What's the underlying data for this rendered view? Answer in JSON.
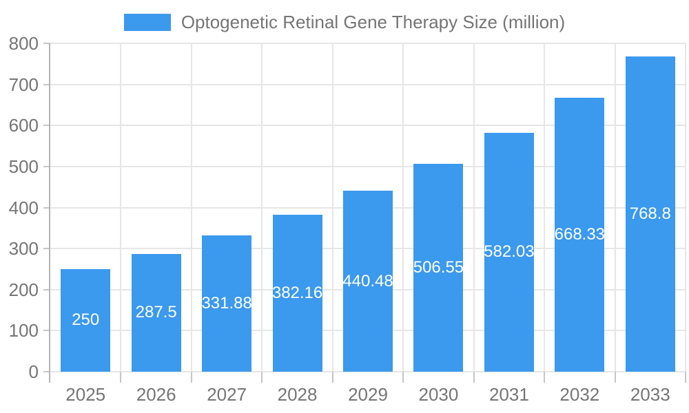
{
  "chart_data": {
    "type": "bar",
    "legend_label": "Optogenetic Retinal Gene Therapy Size (million)",
    "categories": [
      "2025",
      "2026",
      "2027",
      "2028",
      "2029",
      "2030",
      "2031",
      "2032",
      "2033"
    ],
    "values": [
      250,
      287.5,
      331.88,
      382.16,
      440.48,
      506.55,
      582.03,
      668.33,
      768.8
    ],
    "value_labels": [
      "250",
      "287.5",
      "331.88",
      "382.16",
      "440.48",
      "506.55",
      "582.03",
      "668.33",
      "768.8"
    ],
    "ylabel": "",
    "xlabel": "",
    "ylim": [
      0,
      800
    ],
    "ytick_step": 100,
    "ytick_labels": [
      "0",
      "100",
      "200",
      "300",
      "400",
      "500",
      "600",
      "700",
      "800"
    ],
    "grid": true,
    "legend_position": "top",
    "colors": {
      "bar": "#3B99EE",
      "axis_text": "#757575",
      "value_text": "#FFFFFF",
      "gridline": "#E6E6E6",
      "axis_line": "#B3B3B3",
      "tick": "#C6C6C6"
    }
  }
}
